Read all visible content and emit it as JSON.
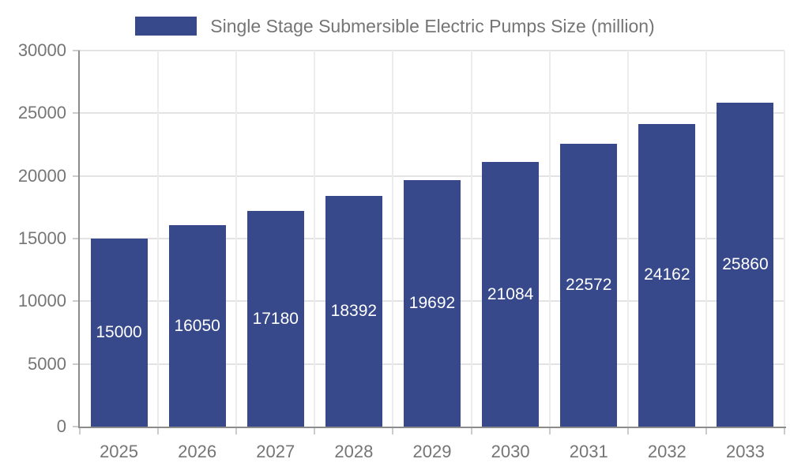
{
  "chart_data": {
    "type": "bar",
    "title": "Single Stage Submersible Electric Pumps Size (million)",
    "categories": [
      "2025",
      "2026",
      "2027",
      "2028",
      "2029",
      "2030",
      "2031",
      "2032",
      "2033"
    ],
    "values": [
      15000,
      16050,
      17180,
      18392,
      19692,
      21084,
      22572,
      24162,
      25860
    ],
    "value_labels": [
      "15000",
      "16050",
      "17180",
      "18392",
      "19692",
      "21084",
      "22572",
      "24162",
      "25860"
    ],
    "xlabel": "",
    "ylabel": "",
    "ylim": [
      0,
      30000
    ],
    "yticks": [
      0,
      5000,
      10000,
      15000,
      20000,
      25000,
      30000
    ],
    "ytick_labels": [
      "0",
      "5000",
      "10000",
      "15000",
      "20000",
      "25000",
      "30000"
    ],
    "grid": true,
    "legend_position": "top",
    "bar_color": "#37498b",
    "value_label_color": "#ffffff"
  },
  "colors": {
    "background": "#ffffff",
    "axis_text": "#757575",
    "title_text": "#757575",
    "gridline_h": "#e3e3e3",
    "gridline_v": "#ececec",
    "axis_line": "#8c8c8c",
    "tick": "#cccccc"
  }
}
